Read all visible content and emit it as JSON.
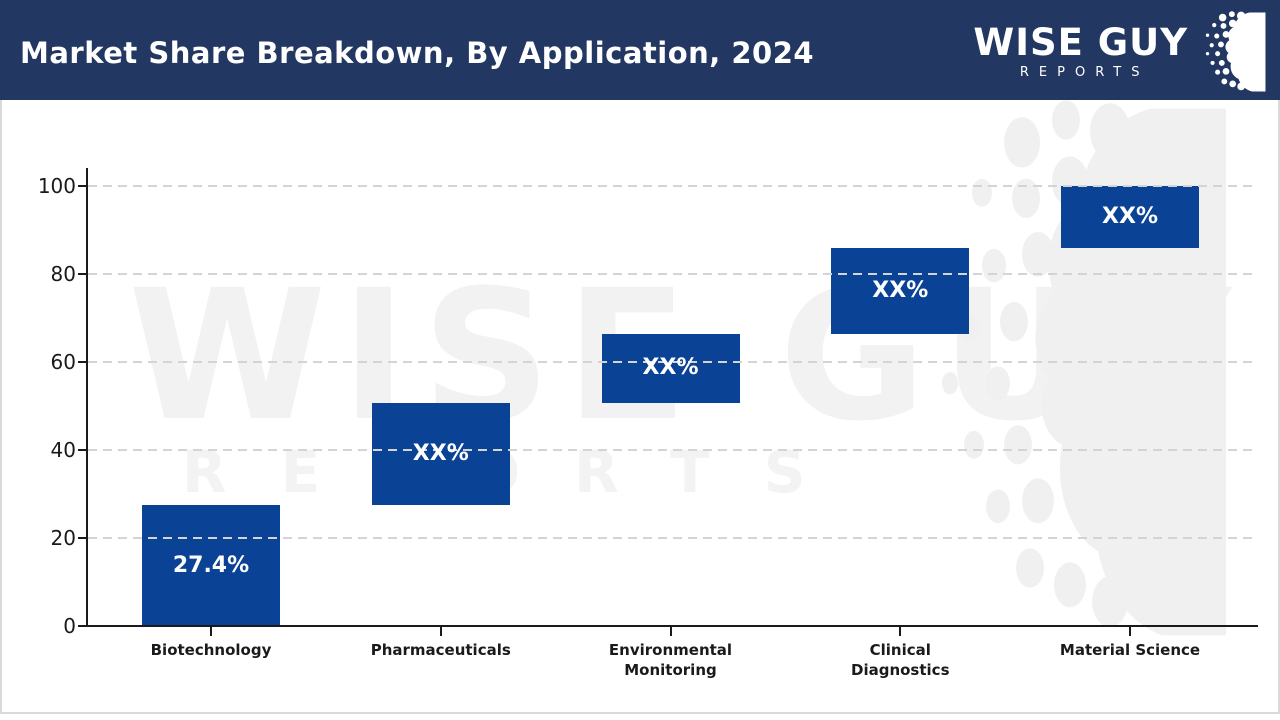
{
  "header": {
    "title": "Market Share Breakdown, By Application, 2024",
    "logo": {
      "line1": "WISE GUY",
      "line2": "REPORTS"
    }
  },
  "watermark": {
    "line1": "WISE GUY",
    "line2": "REPORTS"
  },
  "colors": {
    "header_bg": "#223761",
    "bar": "#0a4296",
    "grid": "#d4d4d4",
    "axis": "#1a1a1a",
    "card_border": "#d9d9d9",
    "title_text": "#ffffff",
    "bar_label_text": "#ffffff",
    "watermark_text": "#f2f2f2"
  },
  "chart_data": {
    "type": "bar",
    "subtype": "waterfall",
    "title": "Market Share Breakdown, By Application, 2024",
    "categories": [
      "Biotechnology",
      "Pharmaceuticals",
      "Environmental Monitoring",
      "Clinical Diagnostics",
      "Material Science"
    ],
    "segments": [
      {
        "category": "Biotechnology",
        "start": 0,
        "end": 27.4,
        "label": "27.4%"
      },
      {
        "category": "Pharmaceuticals",
        "start": 27.4,
        "end": 50.7,
        "label": "XX%"
      },
      {
        "category": "Environmental Monitoring",
        "start": 50.7,
        "end": 66.4,
        "label": "XX%"
      },
      {
        "category": "Clinical Diagnostics",
        "start": 66.4,
        "end": 85.9,
        "label": "XX%"
      },
      {
        "category": "Material Science",
        "start": 85.9,
        "end": 99.9,
        "label": "XX%"
      }
    ],
    "xlabel": "",
    "ylabel": "",
    "ylim": [
      0,
      100
    ],
    "yticks": [
      0,
      20,
      40,
      60,
      80,
      100
    ],
    "grid": "horizontal-dashed",
    "legend": "none",
    "bar_color": "#0a4296",
    "value_label_color": "#ffffff"
  }
}
